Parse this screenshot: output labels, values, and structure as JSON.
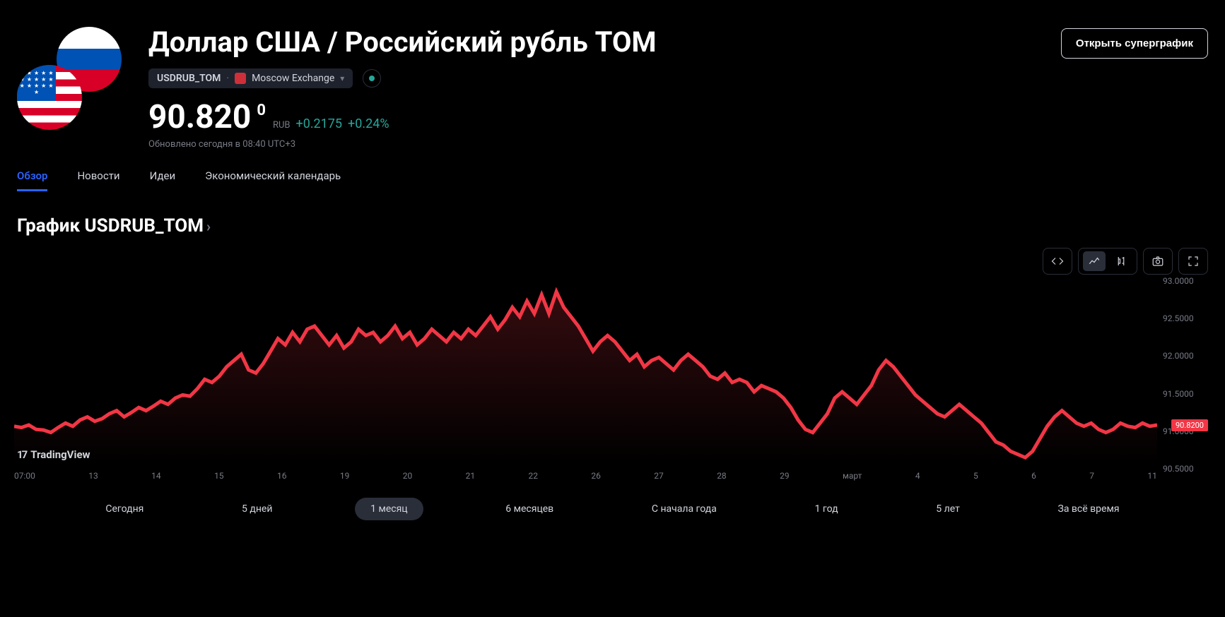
{
  "header": {
    "title": "Доллар США / Российский рубль TOM",
    "symbol": "USDRUB_TOM",
    "exchange": "Moscow Exchange",
    "super_button": "Открыть суперграфик"
  },
  "price": {
    "integer": "90.820",
    "decimal_sup": "0",
    "currency": "RUB",
    "change_abs": "+0.2175",
    "change_pct": "+0.24%",
    "change_color": "#26a69a",
    "updated": "Обновлено сегодня в 08:40 UTC+3"
  },
  "tabs": [
    {
      "label": "Обзор",
      "active": true
    },
    {
      "label": "Новости",
      "active": false
    },
    {
      "label": "Идеи",
      "active": false
    },
    {
      "label": "Экономический календарь",
      "active": false
    }
  ],
  "chart": {
    "title_prefix": "График ",
    "title_symbol": "USDRUB_TOM",
    "type": "area",
    "line_color": "#f23645",
    "fill_top": "rgba(242,54,69,0.22)",
    "fill_bottom": "rgba(242,54,69,0.00)",
    "background_color": "#000000",
    "ylim": [
      90.2,
      93.2
    ],
    "yticks": [
      "93.0000",
      "92.5000",
      "92.0000",
      "91.5000",
      "91.0000",
      "90.5000"
    ],
    "current_price_tag": "90.8200",
    "current_price_y": 90.82,
    "xlabels": [
      "07:00",
      "13",
      "14",
      "15",
      "16",
      "19",
      "20",
      "21",
      "22",
      "26",
      "27",
      "28",
      "29",
      "март",
      "4",
      "5",
      "6",
      "7",
      "11"
    ],
    "data": [
      90.8,
      90.78,
      90.82,
      90.75,
      90.74,
      90.7,
      90.78,
      90.85,
      90.8,
      90.9,
      90.95,
      90.88,
      90.92,
      91.0,
      91.05,
      90.95,
      91.02,
      91.1,
      91.05,
      91.12,
      91.2,
      91.15,
      91.25,
      91.3,
      91.28,
      91.4,
      91.55,
      91.5,
      91.6,
      91.75,
      91.85,
      91.95,
      91.7,
      91.65,
      91.8,
      92.0,
      92.2,
      92.1,
      92.3,
      92.15,
      92.35,
      92.4,
      92.25,
      92.1,
      92.25,
      92.05,
      92.15,
      92.35,
      92.25,
      92.3,
      92.15,
      92.25,
      92.4,
      92.2,
      92.3,
      92.1,
      92.2,
      92.35,
      92.25,
      92.15,
      92.3,
      92.2,
      92.35,
      92.25,
      92.4,
      92.55,
      92.35,
      92.5,
      92.7,
      92.55,
      92.8,
      92.6,
      92.9,
      92.6,
      92.95,
      92.7,
      92.55,
      92.4,
      92.2,
      92.0,
      92.15,
      92.25,
      92.15,
      92.0,
      91.85,
      91.95,
      91.75,
      91.85,
      91.9,
      91.8,
      91.7,
      91.85,
      91.95,
      91.85,
      91.75,
      91.6,
      91.55,
      91.65,
      91.5,
      91.55,
      91.5,
      91.35,
      91.45,
      91.4,
      91.35,
      91.25,
      91.1,
      90.9,
      90.75,
      90.7,
      90.85,
      91.0,
      91.25,
      91.35,
      91.25,
      91.15,
      91.3,
      91.45,
      91.7,
      91.85,
      91.75,
      91.6,
      91.45,
      91.3,
      91.2,
      91.1,
      91.0,
      90.95,
      91.05,
      91.15,
      91.05,
      90.95,
      90.85,
      90.7,
      90.55,
      90.5,
      90.4,
      90.35,
      90.3,
      90.4,
      90.6,
      90.8,
      90.95,
      91.05,
      90.95,
      90.85,
      90.8,
      90.85,
      90.75,
      90.7,
      90.75,
      90.85,
      90.8,
      90.78,
      90.85,
      90.8,
      90.82
    ],
    "watermark": "TradingView"
  },
  "ranges": [
    {
      "label": "Сегодня",
      "active": false
    },
    {
      "label": "5 дней",
      "active": false
    },
    {
      "label": "1 месяц",
      "active": true
    },
    {
      "label": "6 месяцев",
      "active": false
    },
    {
      "label": "С начала года",
      "active": false
    },
    {
      "label": "1 год",
      "active": false
    },
    {
      "label": "5 лет",
      "active": false
    },
    {
      "label": "За всё время",
      "active": false
    }
  ]
}
